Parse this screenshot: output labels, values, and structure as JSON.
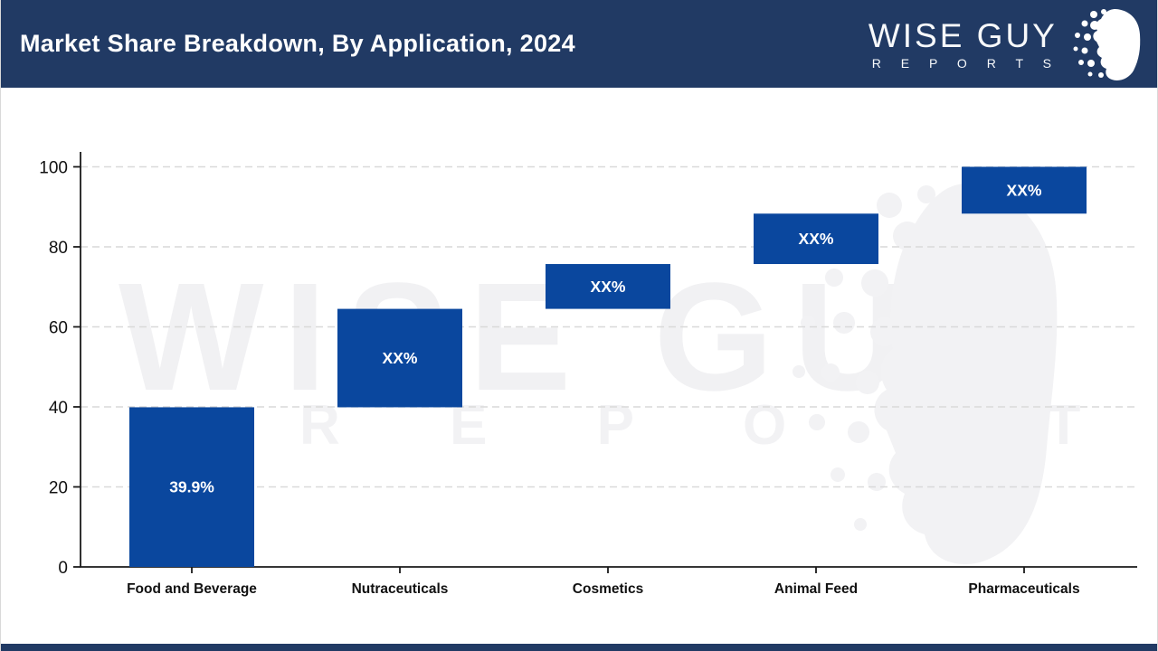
{
  "header": {
    "title": "Market Share Breakdown, By Application, 2024",
    "bg_color": "#213A64",
    "logo": {
      "line1": "WISE GUY",
      "line2": "R E P O R T S"
    }
  },
  "watermark": {
    "line1": "WISE GUY",
    "line2": "R E P O R T S"
  },
  "chart_data": {
    "type": "bar",
    "subtype": "waterfall",
    "title": "Market Share Breakdown, By Application, 2024",
    "xlabel": "",
    "ylabel": "",
    "categories": [
      "Food and Beverage",
      "Nutraceuticals",
      "Cosmetics",
      "Animal Feed",
      "Pharmaceuticals"
    ],
    "bars": [
      {
        "category": "Food and Beverage",
        "start": 0,
        "end": 39.9,
        "label": "39.9%"
      },
      {
        "category": "Nutraceuticals",
        "start": 39.9,
        "end": 64.5,
        "label": "XX%"
      },
      {
        "category": "Cosmetics",
        "start": 64.5,
        "end": 75.7,
        "label": "XX%"
      },
      {
        "category": "Animal Feed",
        "start": 75.7,
        "end": 88.3,
        "label": "XX%"
      },
      {
        "category": "Pharmaceuticals",
        "start": 88.3,
        "end": 100,
        "label": "XX%"
      }
    ],
    "estimated_segment_values": [
      39.9,
      24.6,
      11.2,
      12.6,
      11.7
    ],
    "yticks": [
      0,
      20,
      40,
      60,
      80,
      100
    ],
    "ylim": [
      0,
      103.5
    ],
    "grid": "horizontal-dashed",
    "legend": "none",
    "bar_color": "#0A479E",
    "bar_label_color": "#ffffff",
    "axis_color": "#1a1a1a",
    "grid_color": "#d9d9d9",
    "tick_label_color": "#111111"
  }
}
